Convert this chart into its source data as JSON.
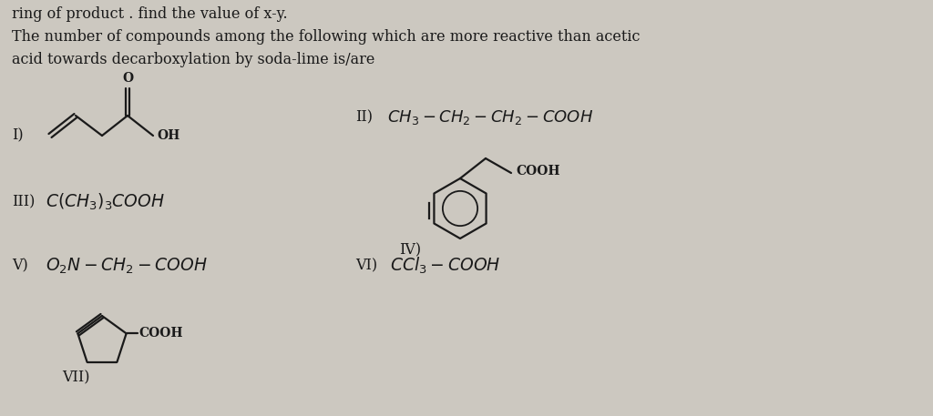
{
  "bg_color": "#ccc8c0",
  "text_color": "#1a1a1a",
  "header_line1": "ring of product . find the value of x-y.",
  "header_line2": "The number of compounds among the following which are more reactive than acetic",
  "header_line3": "acid towards decarboxylation by soda-lime is/are",
  "label_I": "I)",
  "label_II": "II)",
  "label_III": "III)",
  "label_IV": "IV)",
  "label_V": "V)",
  "label_VI": "VI)",
  "label_VII": "VII)"
}
